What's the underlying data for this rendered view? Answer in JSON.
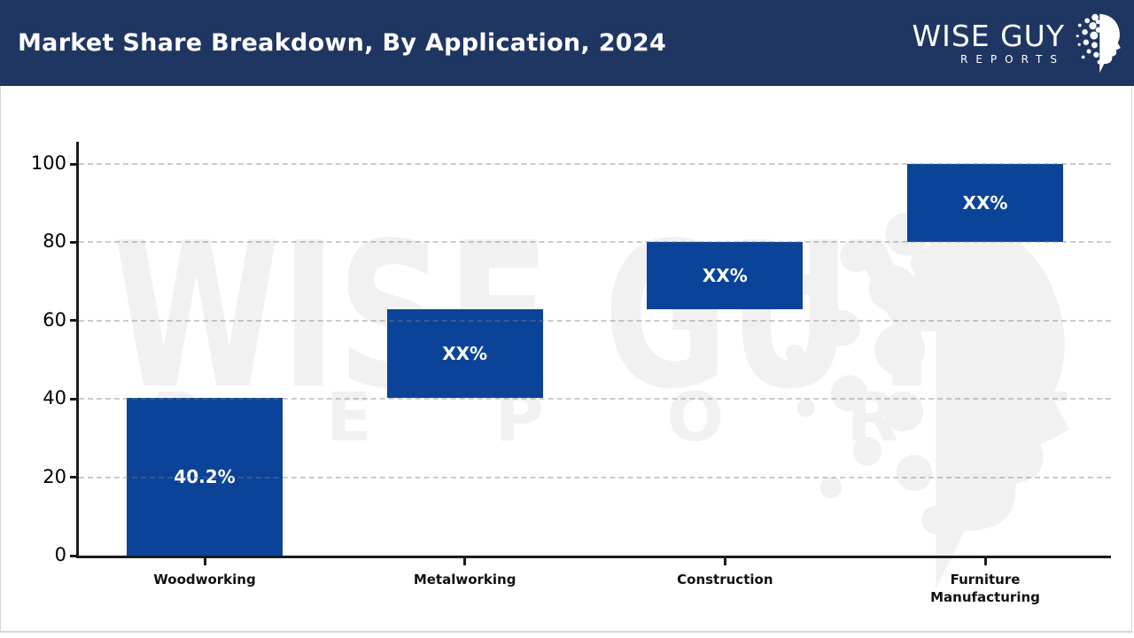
{
  "header": {
    "title": "Market Share Breakdown, By Application, 2024",
    "logo": {
      "line1": "WISE GUY",
      "line2": "REPORTS"
    }
  },
  "watermark": {
    "line1": "WISE GUY",
    "line2": "R E P O R T S"
  },
  "colors": {
    "header_bg": "#1f3662",
    "bar_fill": "#0b4399",
    "bar_label_text": "#ffffff",
    "axis": "#1b1b1b",
    "gridline": "rgba(125,125,125,0.40)",
    "watermark": "#f1f1f1",
    "card_border": "#d6d6d6"
  },
  "chart_data": {
    "type": "bar",
    "variant": "waterfall",
    "title": "Market Share Breakdown, By Application, 2024",
    "categories": [
      "Woodworking",
      "Metalworking",
      "Construction",
      "Furniture Manufacturing"
    ],
    "bars": [
      {
        "category": "Woodworking",
        "start": 0,
        "end": 40.2,
        "label": "40.2%"
      },
      {
        "category": "Metalworking",
        "start": 40.2,
        "end": 63,
        "label": "XX%"
      },
      {
        "category": "Construction",
        "start": 63,
        "end": 80,
        "label": "XX%"
      },
      {
        "category": "Furniture Manufacturing",
        "start": 80,
        "end": 100,
        "label": "XX%"
      }
    ],
    "yticks": [
      0,
      20,
      40,
      60,
      80,
      100
    ],
    "ylim": [
      0,
      105.7
    ],
    "xlabel": "",
    "ylabel": "",
    "grid": "horizontal-dashed-over-bars",
    "legend": null
  }
}
